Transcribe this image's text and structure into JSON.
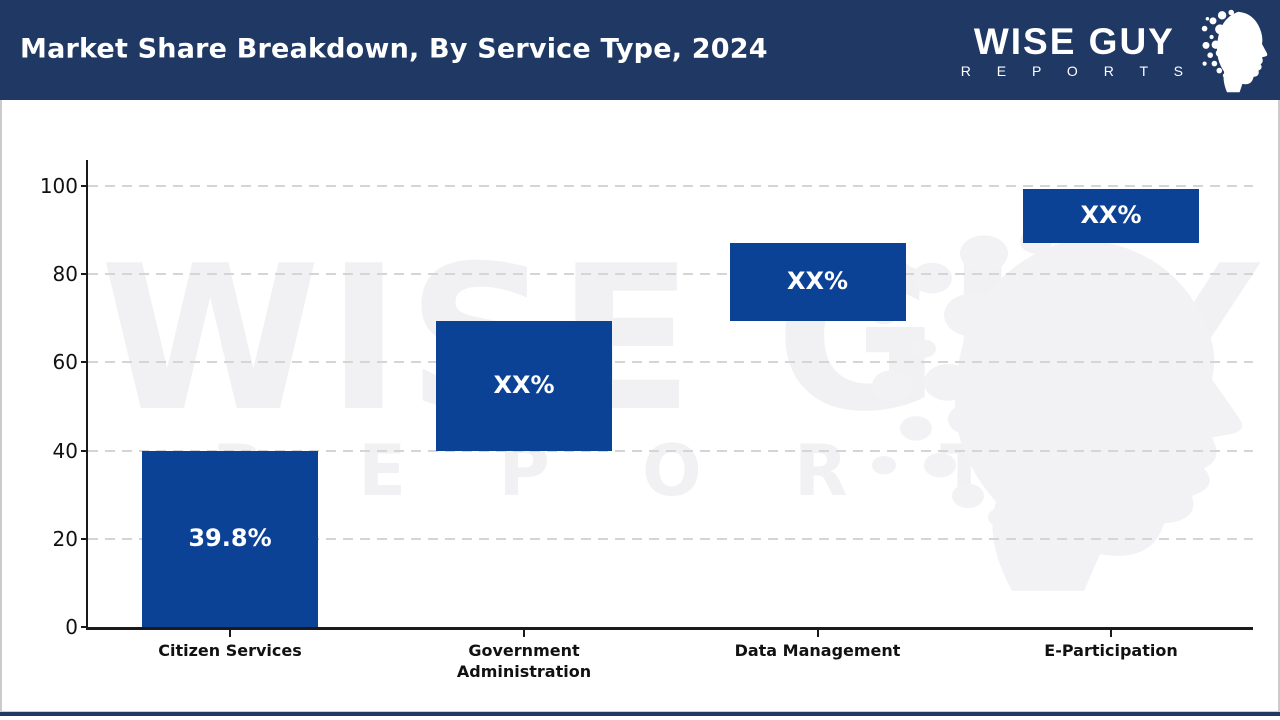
{
  "header": {
    "title": "Market Share Breakdown, By Service Type, 2024",
    "logo": {
      "line1": "WISE GUY",
      "line2": "R E P O R T S"
    }
  },
  "watermark": {
    "line1": "WISE GUY",
    "line2": "R E P O R T S"
  },
  "chart_data": {
    "type": "bar",
    "subtype": "waterfall",
    "title": "Market Share Breakdown, By Service Type, 2024",
    "categories": [
      "Citizen Services",
      "Government Administration",
      "Data Management",
      "E-Participation"
    ],
    "segments": [
      {
        "category": "Citizen Services",
        "start": 0,
        "end": 39.8,
        "label": "39.8%"
      },
      {
        "category": "Government Administration",
        "start": 39.8,
        "end": 69.5,
        "label": "XX%"
      },
      {
        "category": "Data Management",
        "start": 69.5,
        "end": 87.0,
        "label": "XX%"
      },
      {
        "category": "E-Participation",
        "start": 87.0,
        "end": 99.3,
        "label": "XX%"
      }
    ],
    "ylim": [
      0,
      100
    ],
    "yticks": [
      0,
      20,
      40,
      60,
      80,
      100
    ],
    "grid": "horizontal-dashed",
    "legend": "none",
    "bar_color": "#0c4296",
    "bar_label_color": "#ffffff",
    "axis_color": "#1a1a1a"
  },
  "colors": {
    "header_bg": "#203864",
    "content_bg": "#ffffff",
    "watermark": "#f1f1f3",
    "gridline": "#d5d5d5",
    "edge_border": "#cccccc"
  }
}
